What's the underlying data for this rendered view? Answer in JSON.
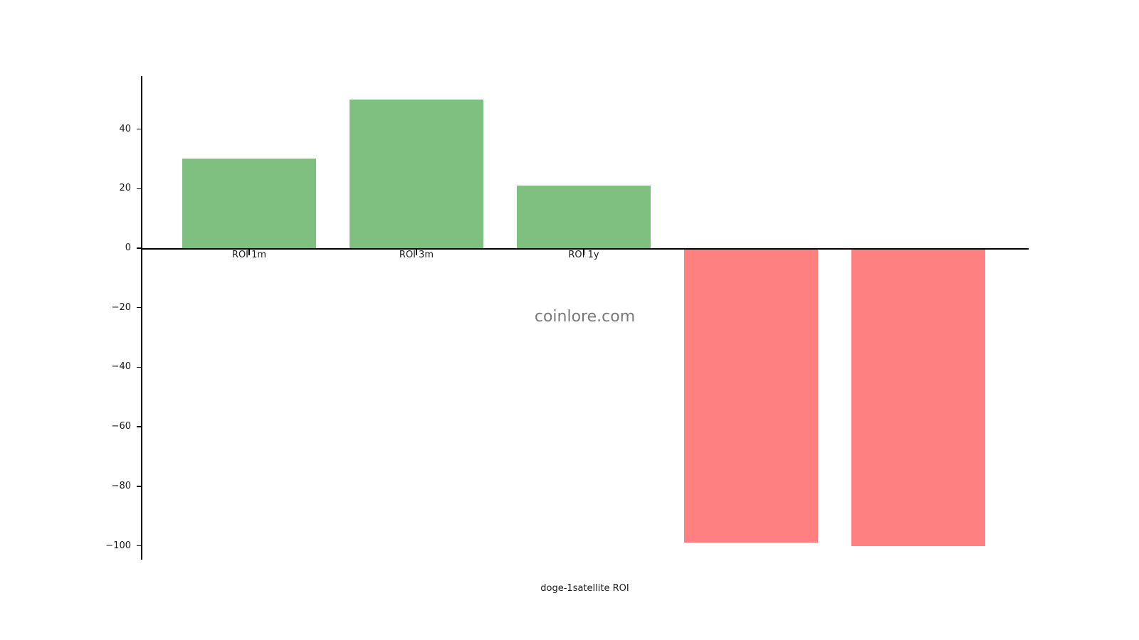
{
  "chart_data": {
    "type": "bar",
    "title": "",
    "xlabel": "doge-1satellite ROI",
    "ylabel": "",
    "categories": [
      "ROI 1m",
      "ROI 3m",
      "ROI 1y",
      "",
      ""
    ],
    "values": [
      30,
      50,
      21,
      -99,
      -100
    ],
    "bar_colors": [
      "#7fbf7f",
      "#7fbf7f",
      "#7fbf7f",
      "#ff8080",
      "#ff8080"
    ],
    "positive_color": "#7fbf7f",
    "negative_color": "#ff8080",
    "yticks": [
      40,
      20,
      0,
      -20,
      -40,
      -60,
      -80,
      -100
    ],
    "ytick_labels": [
      "40",
      "20",
      "0",
      "−20",
      "−40",
      "−60",
      "−80",
      "−100"
    ],
    "ylim": [
      -104.5,
      58
    ],
    "grid": false,
    "legend": "none",
    "watermark": "coinlore.com",
    "axis_color": "#000000",
    "text_color": "#1a1a1a",
    "watermark_color": "#787878",
    "background": "#ffffff"
  }
}
